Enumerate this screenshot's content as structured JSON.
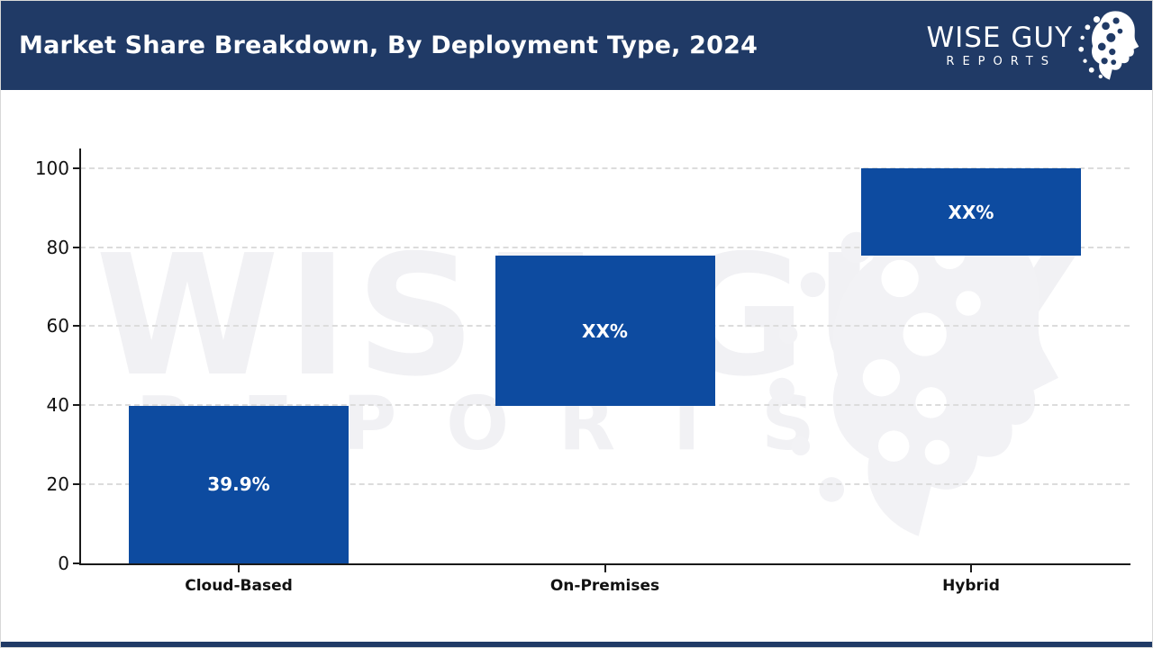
{
  "header": {
    "title": "Market Share Breakdown, By Deployment Type, 2024",
    "bg_color": "#203a66",
    "logo": {
      "line1": "WISE GUY",
      "line2": "REPORTS"
    }
  },
  "watermark": {
    "line1": "WISE GUY",
    "line2": "REPORTS"
  },
  "chart_data": {
    "type": "bar",
    "subtype": "stacked-waterfall-segments",
    "title": "Market Share Breakdown, By Deployment Type, 2024",
    "categories": [
      "Cloud-Based",
      "On-Premises",
      "Hybrid"
    ],
    "segments": [
      {
        "category": "Cloud-Based",
        "from": 0,
        "to": 39.9,
        "label": "39.9%"
      },
      {
        "category": "On-Premises",
        "from": 39.9,
        "to": 77.8,
        "label": "XX%"
      },
      {
        "category": "Hybrid",
        "from": 77.8,
        "to": 100,
        "label": "XX%"
      }
    ],
    "values_visible": [
      "39.9%",
      "XX%",
      "XX%"
    ],
    "xlabel": "",
    "ylabel": "",
    "y_ticks": [
      0,
      20,
      40,
      60,
      80,
      100
    ],
    "ylim": [
      0,
      100
    ],
    "grid": "horizontal-dashed",
    "legend": "none",
    "bar_color": "#0d4ba0",
    "gridline_color": "#dcdcdc"
  }
}
